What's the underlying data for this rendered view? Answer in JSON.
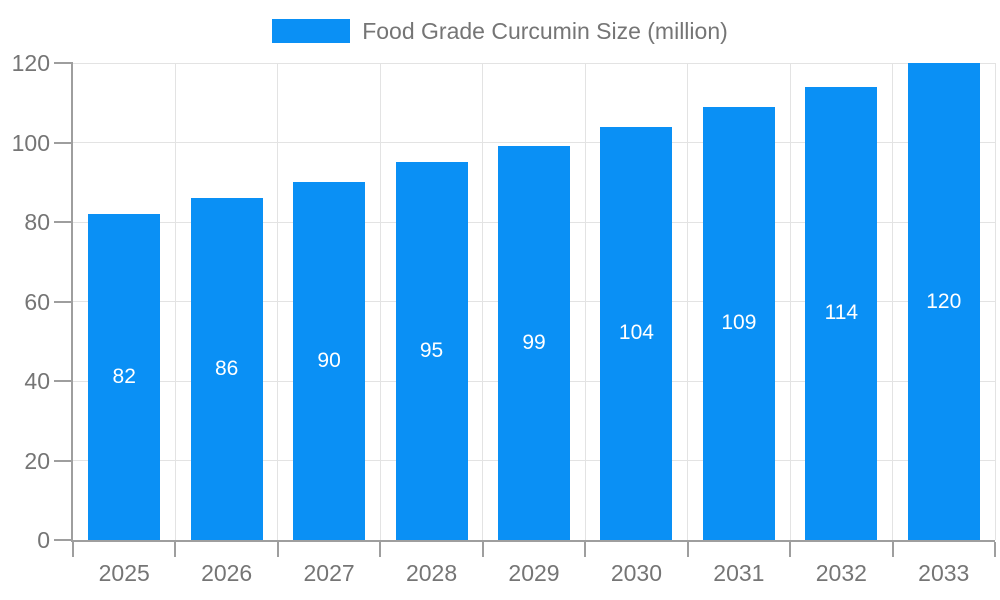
{
  "legend": {
    "label": "Food Grade Curcumin Size (million)"
  },
  "chart_data": {
    "type": "bar",
    "title": "Food Grade Curcumin Size (million)",
    "series_name": "Food Grade Curcumin Size (million)",
    "categories": [
      "2025",
      "2026",
      "2027",
      "2028",
      "2029",
      "2030",
      "2031",
      "2032",
      "2033"
    ],
    "values": [
      82,
      86,
      90,
      95,
      99,
      104,
      109,
      114,
      120
    ],
    "xlabel": "",
    "ylabel": "",
    "ylim": [
      0,
      120
    ],
    "yticks": [
      0,
      20,
      40,
      60,
      80,
      100,
      120
    ],
    "grid": true,
    "legend_position": "top-center",
    "data_labels_inside_bars": true,
    "bar_color": "#0A90F5",
    "data_label_color": "#FFFFFF",
    "axis_color": "#9E9E9E",
    "gridline_color": "#E3E3E3",
    "tick_text_color": "#757575"
  }
}
